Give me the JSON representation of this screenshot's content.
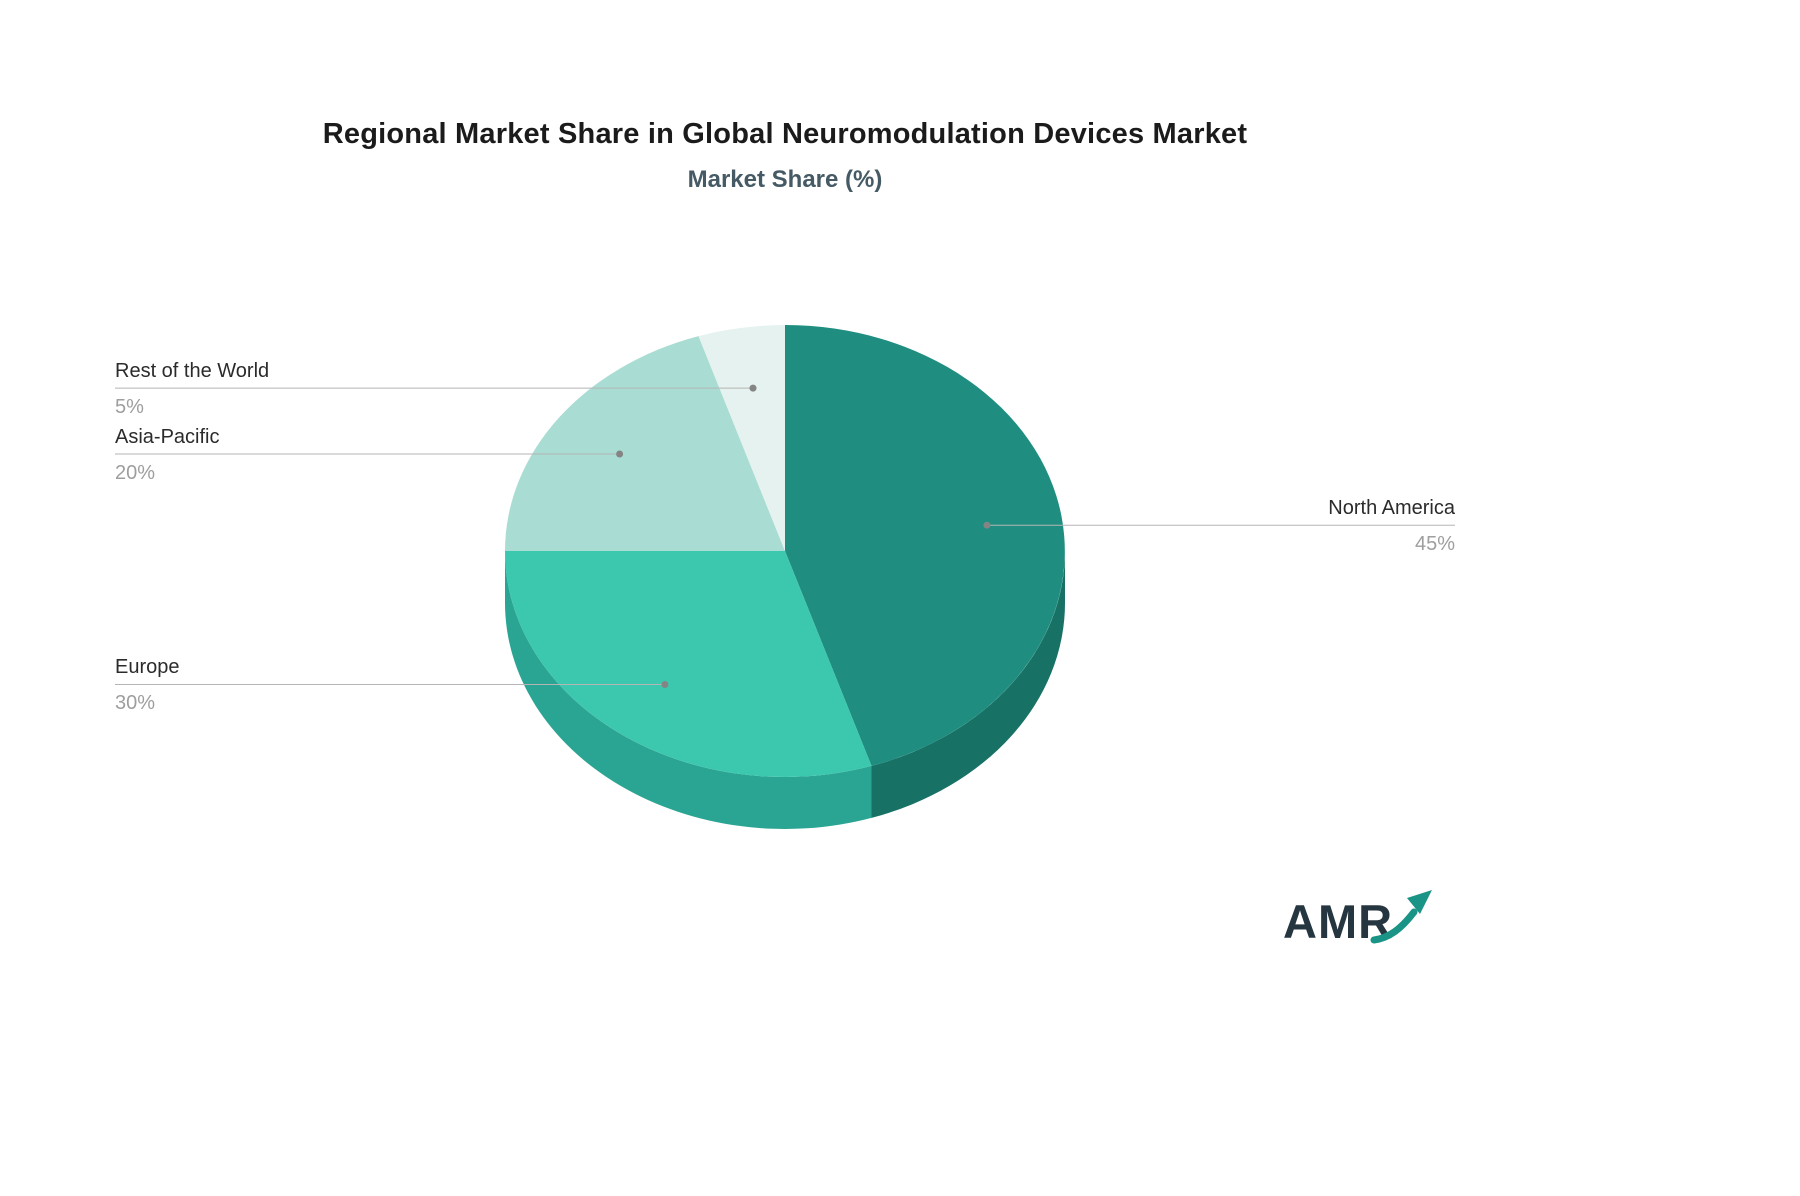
{
  "page": {
    "background": "#ffffff"
  },
  "header": {
    "title": "Regional Market Share in Global Neuromodulation Devices Market",
    "subtitle": "Market Share (%)"
  },
  "logo": {
    "text": "AMR",
    "icon": "growth-arrow-icon",
    "text_color": "#263640",
    "arrow_color": "#1a9486"
  },
  "chart_data": {
    "type": "pie",
    "style": "3d",
    "title": "Regional Market Share in Global Neuromodulation Devices Market",
    "subtitle": "Market Share (%)",
    "unit": "%",
    "rotation": "clockwise-from-top",
    "legend_position": "leader-line-labels",
    "label_name_color": "#2b2b2b",
    "label_value_color": "#9e9e9e",
    "leader_line_color": "#b5b5b5",
    "leader_dot_color": "#848484",
    "segments": [
      {
        "label": "North America",
        "value": 45,
        "display": "45%",
        "color": "#1f8e81",
        "side_color": "#177265",
        "label_side": "right"
      },
      {
        "label": "Europe",
        "value": 30,
        "display": "30%",
        "color": "#3cc8af",
        "side_color": "#2ba593",
        "label_side": "left"
      },
      {
        "label": "Asia-Pacific",
        "value": 20,
        "display": "20%",
        "color": "#a9dcd3",
        "side_color": "#8cc8be",
        "label_side": "left"
      },
      {
        "label": "Rest of the World",
        "value": 5,
        "display": "5%",
        "color": "#e5f2ef",
        "side_color": "#c4ddd9",
        "label_side": "left"
      }
    ]
  }
}
